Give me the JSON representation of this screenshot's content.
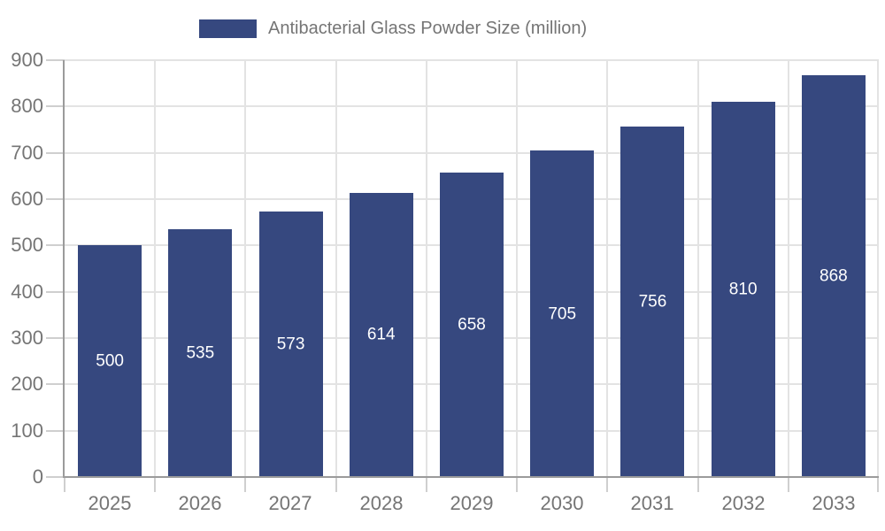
{
  "chart_data": {
    "type": "bar",
    "title": "Antibacterial Glass Powder Size (million)",
    "categories": [
      "2025",
      "2026",
      "2027",
      "2028",
      "2029",
      "2030",
      "2031",
      "2032",
      "2033"
    ],
    "values": [
      500,
      535,
      573,
      614,
      658,
      705,
      756,
      810,
      868
    ],
    "series": [
      {
        "name": "Antibacterial Glass Powder Size (million)",
        "values": [
          500,
          535,
          573,
          614,
          658,
          705,
          756,
          810,
          868
        ]
      }
    ],
    "xlabel": "",
    "ylabel": "",
    "ylim": [
      0,
      900
    ],
    "yticks": [
      0,
      100,
      200,
      300,
      400,
      500,
      600,
      700,
      800,
      900
    ],
    "grid": true,
    "legend_position": "top-center",
    "value_label_position": "inside-middle"
  },
  "colors": {
    "bar": "#36487F",
    "legend_text": "#757575",
    "axis_text": "#757575",
    "value_label_text": "#ffffff",
    "grid_line": "#e3e3e3",
    "tick_line": "#cfcfcf",
    "axis_line": "#9b9b9b",
    "background": "#ffffff"
  }
}
